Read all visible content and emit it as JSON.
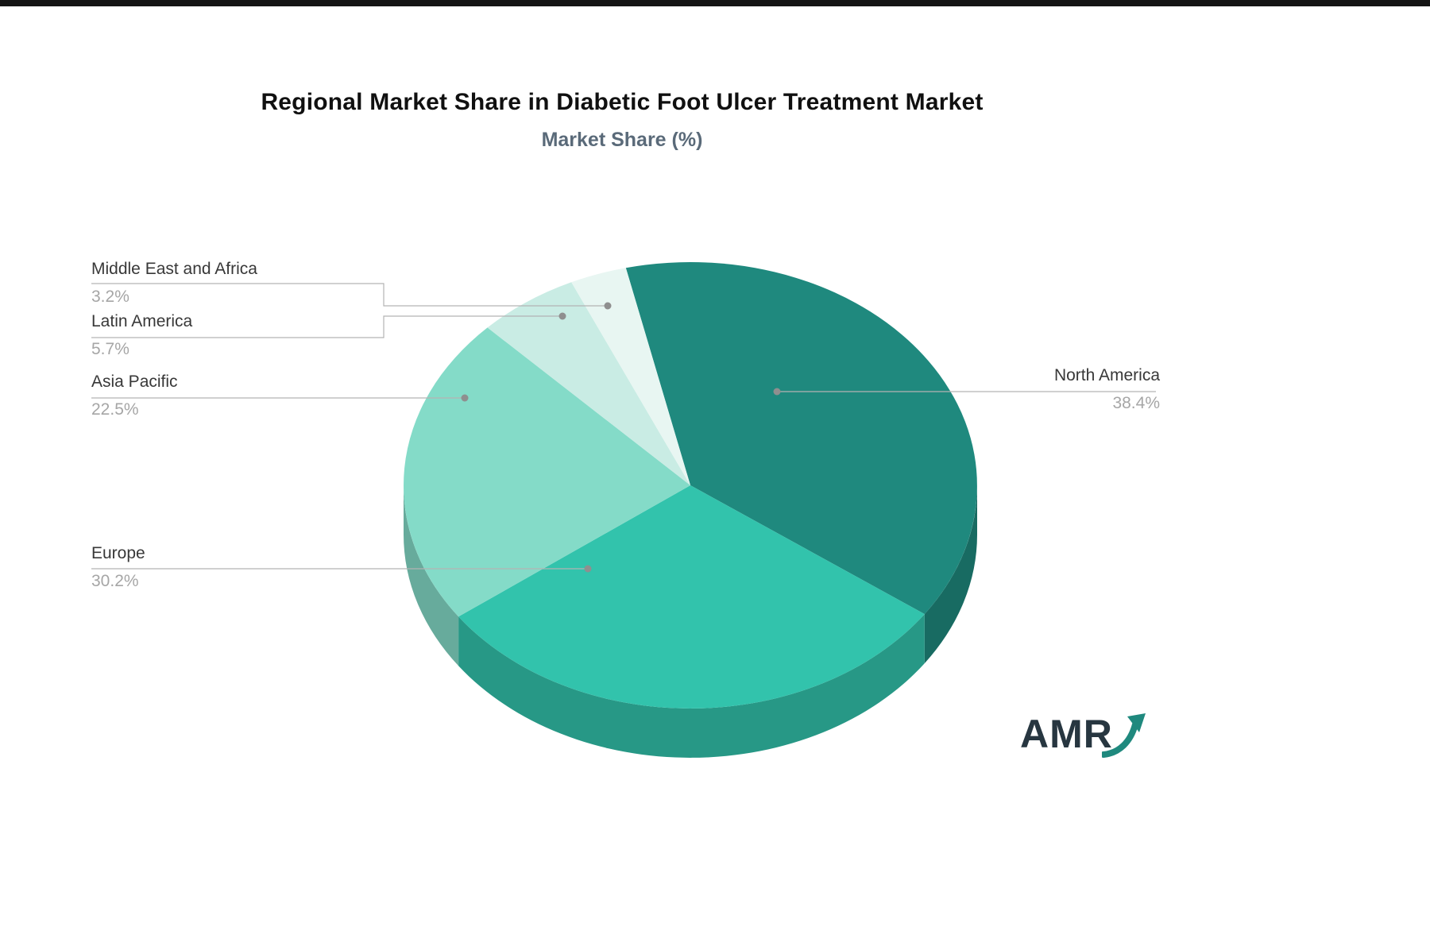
{
  "chart_data": {
    "type": "pie",
    "title": "Regional Market Share in Diabetic Foot Ulcer Treatment Market",
    "subtitle": "Market Share (%)",
    "categories": [
      "North America",
      "Europe",
      "Asia Pacific",
      "Latin America",
      "Middle East and Africa"
    ],
    "values": [
      38.4,
      30.2,
      22.5,
      5.7,
      3.2
    ],
    "value_labels": [
      "38.4%",
      "30.2%",
      "22.5%",
      "5.7%",
      "3.2%"
    ],
    "colors": [
      "#1f897e",
      "#32c3ac",
      "#84dbc8",
      "#c9ece4",
      "#e8f6f2"
    ],
    "style": "3d-pie",
    "legend_position": "none",
    "label_style": "callout-lines"
  },
  "logo": {
    "text": "AMR",
    "accent_color": "#1f897e",
    "text_color": "#273640"
  }
}
